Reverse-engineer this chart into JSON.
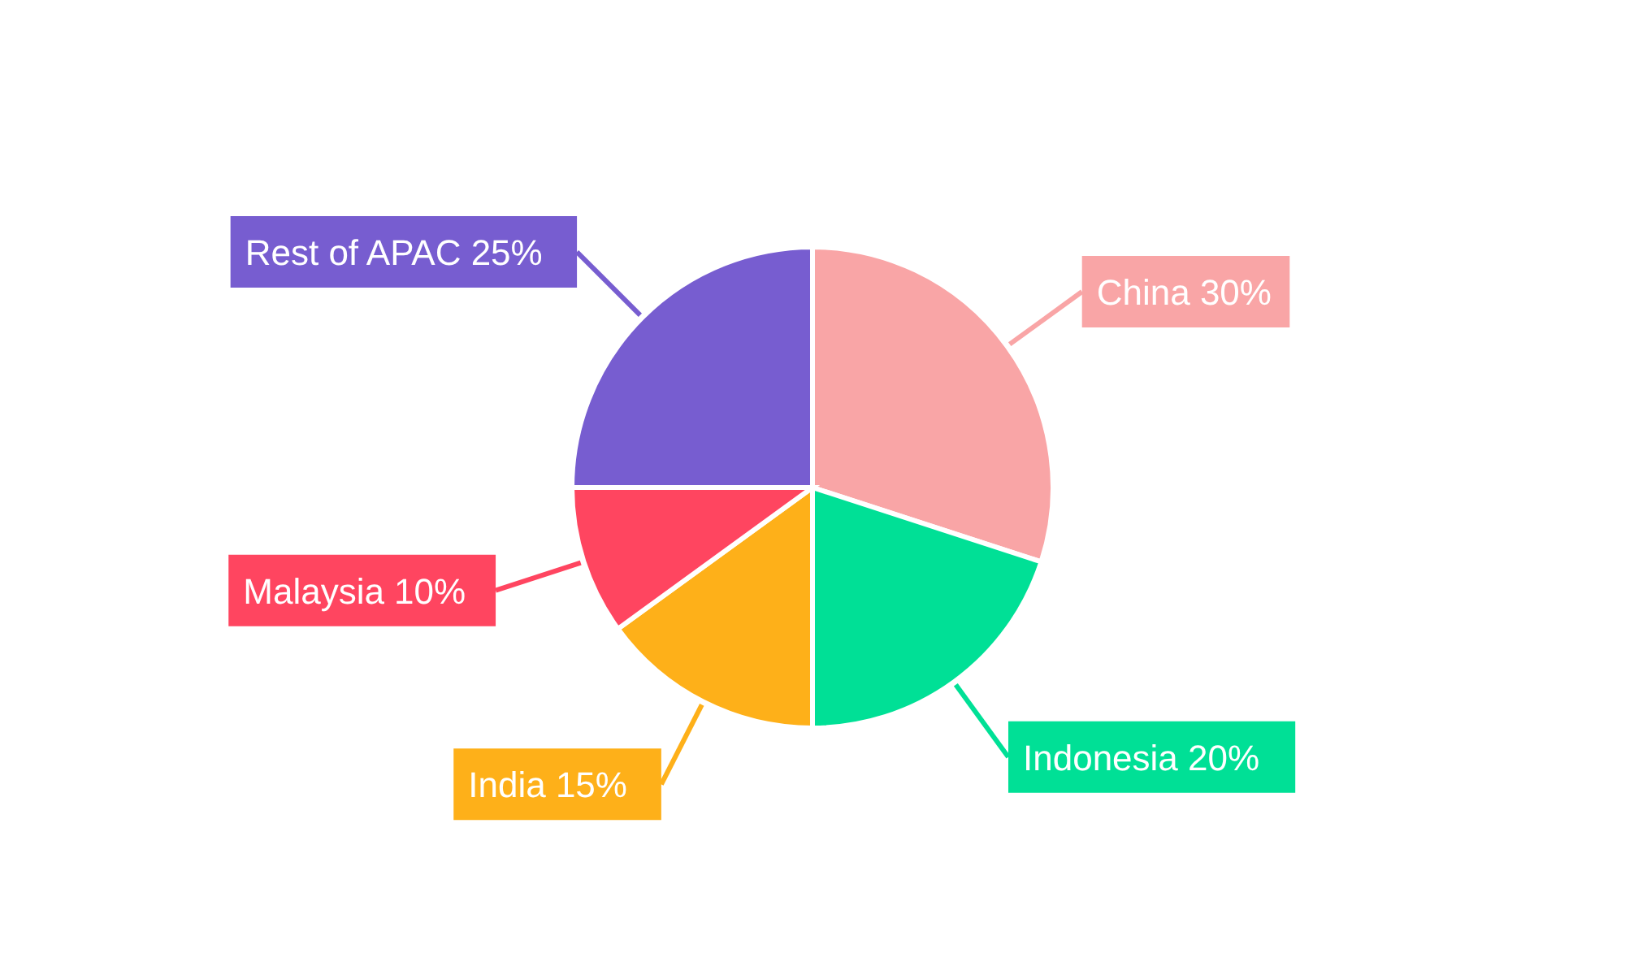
{
  "chart_data": {
    "type": "pie",
    "categories": [
      "China",
      "Indonesia",
      "India",
      "Malaysia",
      "Rest of APAC"
    ],
    "values": [
      30,
      20,
      15,
      10,
      25
    ],
    "colors": [
      "#f9a5a6",
      "#00e096",
      "#feb019",
      "#ff4560",
      "#775dd0"
    ],
    "value_labels": [
      "30%",
      "20%",
      "15%",
      "10%",
      "25%"
    ]
  }
}
